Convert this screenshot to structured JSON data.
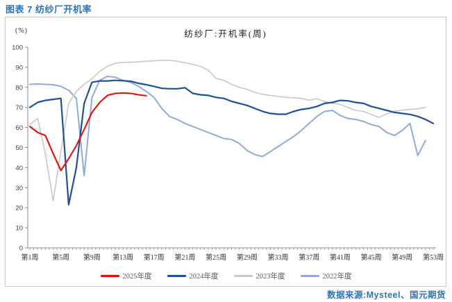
{
  "header": {
    "title": "图表 7  纺纱厂开机率"
  },
  "source_note": "数据来源:Mysteel、国元期货",
  "chart_data": {
    "type": "line",
    "title": "纺纱厂:开机率(周)",
    "unit_label": "(%)",
    "grid": false,
    "legend_position": "bottom",
    "x_axis": {
      "total_weeks": 53,
      "tick_label_weeks": [
        1,
        5,
        9,
        13,
        17,
        21,
        25,
        29,
        33,
        37,
        41,
        45,
        49,
        53
      ],
      "tick_labels": [
        "第1周",
        "第5周",
        "第9周",
        "第13周",
        "第17周",
        "第21周",
        "第25周",
        "第29周",
        "第33周",
        "第37周",
        "第41周",
        "第45周",
        "第49周",
        "第53周"
      ]
    },
    "y_axis": {
      "min": 0,
      "max": 100,
      "step": 10,
      "tick_labels": [
        "0",
        "10",
        "20",
        "30",
        "40",
        "50",
        "60",
        "70",
        "80",
        "90",
        "100"
      ]
    },
    "series": [
      {
        "name": "2025年度",
        "color": "#FE0000",
        "start_week": 1,
        "values": [
          60.5,
          57.5,
          56,
          47,
          38.5,
          44.5,
          51,
          59,
          67.5,
          72.5,
          76,
          77,
          77.2,
          77,
          76.3,
          75.8
        ]
      },
      {
        "name": "2024年度",
        "color": "#1F4E9C",
        "start_week": 1,
        "values": [
          70,
          72.5,
          73.5,
          74,
          74.5,
          21.5,
          40,
          72,
          82.5,
          83.2,
          83.2,
          83.5,
          83.3,
          83,
          82,
          81.3,
          80.5,
          79.5,
          79.3,
          79.3,
          79.8,
          77,
          76.3,
          76,
          75,
          74.5,
          73,
          72,
          71,
          69.5,
          68,
          67,
          66.6,
          66.6,
          68,
          69,
          69.5,
          70.5,
          72,
          72.5,
          73.5,
          73.3,
          72.5,
          72,
          70.5,
          69.5,
          68.5,
          67.5,
          67,
          66.5,
          65.5,
          64,
          62
        ]
      },
      {
        "name": "2023年度",
        "color": "#C8C8C8",
        "start_week": 1,
        "values": [
          61.5,
          64.5,
          47,
          23.5,
          48,
          72,
          78,
          81.5,
          84.3,
          88,
          90.5,
          92,
          92.5,
          92.5,
          92.7,
          93,
          93.2,
          93.5,
          93.5,
          93,
          92.3,
          91.5,
          90.5,
          88.5,
          84.5,
          83.5,
          81.5,
          80,
          79,
          77.5,
          76.5,
          76,
          75.5,
          75,
          74.8,
          74.5,
          73.6,
          74.3,
          72.9,
          72.1,
          71.5,
          70,
          68.5,
          68,
          66.5,
          65,
          66.8,
          68.2,
          68.6,
          69,
          69.3,
          70
        ]
      },
      {
        "name": "2022年度",
        "color": "#8FAADC",
        "start_week": 1,
        "values": [
          81.5,
          81.7,
          81.5,
          81.3,
          80.5,
          78.5,
          74.5,
          36,
          75,
          83.5,
          85.5,
          85,
          83.5,
          82.5,
          80.5,
          78,
          75,
          69.5,
          65.5,
          64,
          62,
          60.5,
          59,
          57.5,
          56,
          54.5,
          54,
          52,
          48.5,
          46.5,
          45.5,
          48,
          50.5,
          53,
          55.5,
          58.5,
          62,
          65.5,
          68,
          68.5,
          66,
          64.5,
          64,
          63,
          61.5,
          60.5,
          57.5,
          56,
          58.5,
          62,
          46,
          53.5
        ]
      }
    ]
  }
}
